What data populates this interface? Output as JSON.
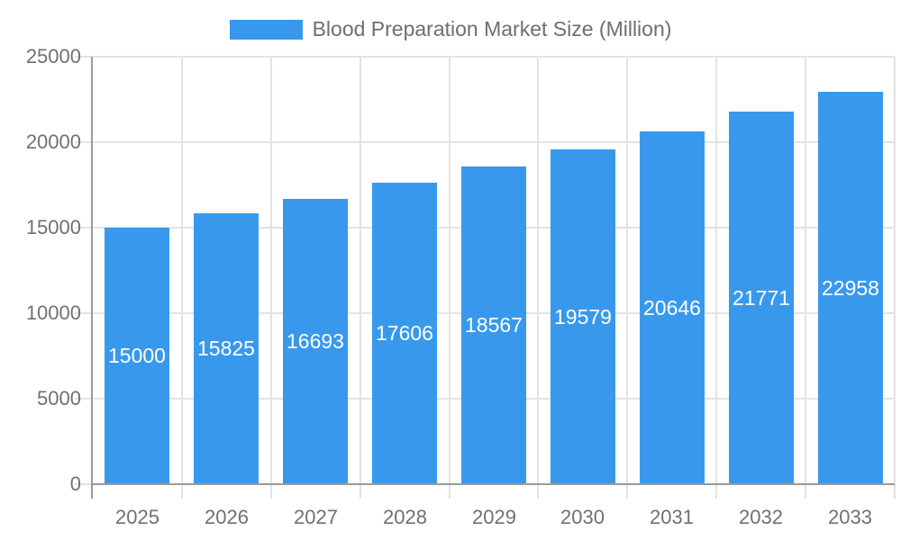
{
  "legend": {
    "label": "Blood Preparation Market Size (Million)"
  },
  "chart_data": {
    "type": "bar",
    "title": "Blood Preparation Market Size (Million)",
    "categories": [
      "2025",
      "2026",
      "2027",
      "2028",
      "2029",
      "2030",
      "2031",
      "2032",
      "2033"
    ],
    "values": [
      15000,
      15825,
      16693,
      17606,
      18567,
      19579,
      20646,
      21771,
      22958
    ],
    "series_name": "Blood Preparation Market Size (Million)",
    "xlabel": "",
    "ylabel": "",
    "ylim": [
      0,
      25000
    ],
    "y_ticks": [
      0,
      5000,
      10000,
      15000,
      20000,
      25000
    ],
    "grid": true,
    "legend_position": "top-center",
    "value_labels": "inside-center-white"
  },
  "colors": {
    "bar": "#3899EC",
    "grid_line": "#E3E3E3",
    "axis_line": "#9A9A9A",
    "tick_text": "#707070",
    "legend_text": "#6E6E6E",
    "value_label_text": "#FFFFFF",
    "background": "#FFFFFF"
  }
}
